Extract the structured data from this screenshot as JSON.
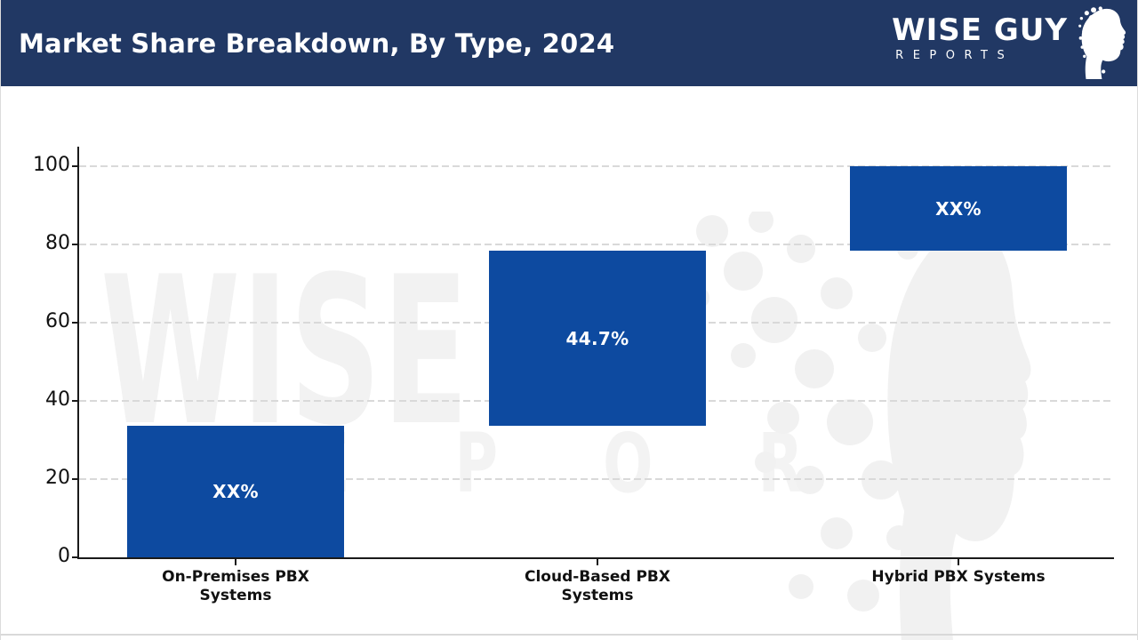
{
  "header": {
    "title": "Market Share Breakdown, By Type, 2024",
    "logo": {
      "line1": "WISE GUY",
      "line2": "REPORTS"
    }
  },
  "watermark": {
    "line1": "WISE G",
    "line2": "R E P O R"
  },
  "colors": {
    "header_bg": "#213864",
    "bar": "#0D4AA0",
    "grid": "#d9d9d9",
    "axis": "#1a1a1a",
    "bar_label": "#ffffff",
    "watermark": "#f1f1f1"
  },
  "chart_data": {
    "type": "bar",
    "subtype": "waterfall",
    "title": "Market Share Breakdown, By Type, 2024",
    "categories": [
      "On-Premises PBX Systems",
      "Cloud-Based PBX Systems",
      "Hybrid PBX Systems"
    ],
    "category_lines": [
      [
        "On-Premises PBX",
        "Systems"
      ],
      [
        "Cloud-Based PBX",
        "Systems"
      ],
      [
        "Hybrid PBX Systems"
      ]
    ],
    "segments": [
      {
        "category": "On-Premises PBX Systems",
        "start": 0,
        "end": 33.6,
        "label": "XX%"
      },
      {
        "category": "Cloud-Based PBX Systems",
        "start": 33.6,
        "end": 78.3,
        "label": "44.7%"
      },
      {
        "category": "Hybrid PBX Systems",
        "start": 78.3,
        "end": 100,
        "label": "XX%"
      }
    ],
    "xlabel": "",
    "ylabel": "",
    "ylim": [
      0,
      100
    ],
    "yticks": [
      0,
      20,
      40,
      60,
      80,
      100
    ],
    "grid": "horizontal-dashed",
    "legend": "none"
  }
}
